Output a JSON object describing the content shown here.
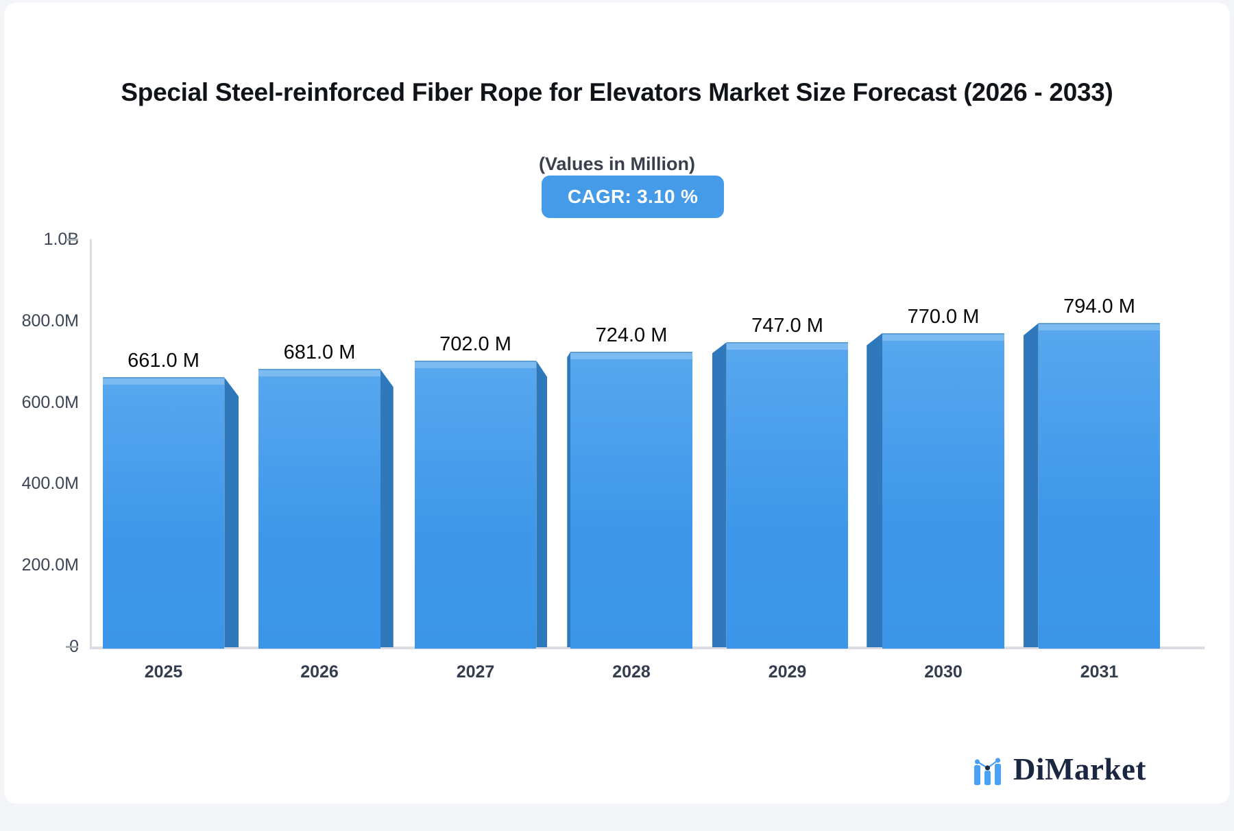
{
  "header": {
    "title": "Special Steel-reinforced Fiber Rope for Elevators Market Size Forecast (2026 - 2033)",
    "subtitle": "(Values in Million)",
    "cagr_badge": "CAGR: 3.10 %"
  },
  "chart_data": {
    "type": "bar",
    "categories": [
      "2025",
      "2026",
      "2027",
      "2028",
      "2029",
      "2030",
      "2031"
    ],
    "values": [
      661,
      681,
      702,
      724,
      747,
      770,
      794
    ],
    "bar_labels": [
      "661.0 M",
      "681.0 M",
      "702.0 M",
      "724.0 M",
      "747.0 M",
      "770.0 M",
      "794.0 M"
    ],
    "unit": "Million",
    "title": "Special Steel-reinforced Fiber Rope for Elevators Market Size Forecast (2026 - 2033)",
    "xlabel": "",
    "ylabel": "",
    "ylim": [
      0,
      1000
    ],
    "y_ticks": [
      "1.0B",
      "800.0M",
      "600.0M",
      "400.0M",
      "200.0M",
      "0"
    ],
    "y_tick_values": [
      1000,
      800,
      600,
      400,
      200,
      0
    ],
    "grid": false,
    "legend": "none",
    "colors": {
      "bar_face": "#3e97ea",
      "bar_face_light": "#58a7ee",
      "bar_top_strip": "#7cbaf2",
      "bar_side": "#2f78bc",
      "badge_bg": "#459be8",
      "axis_line": "#d9dce0",
      "label_dark": "#05070a"
    }
  },
  "footer": {
    "logo_text": "DiMarket",
    "logo_icon": "mini-bar-chart-icon"
  }
}
